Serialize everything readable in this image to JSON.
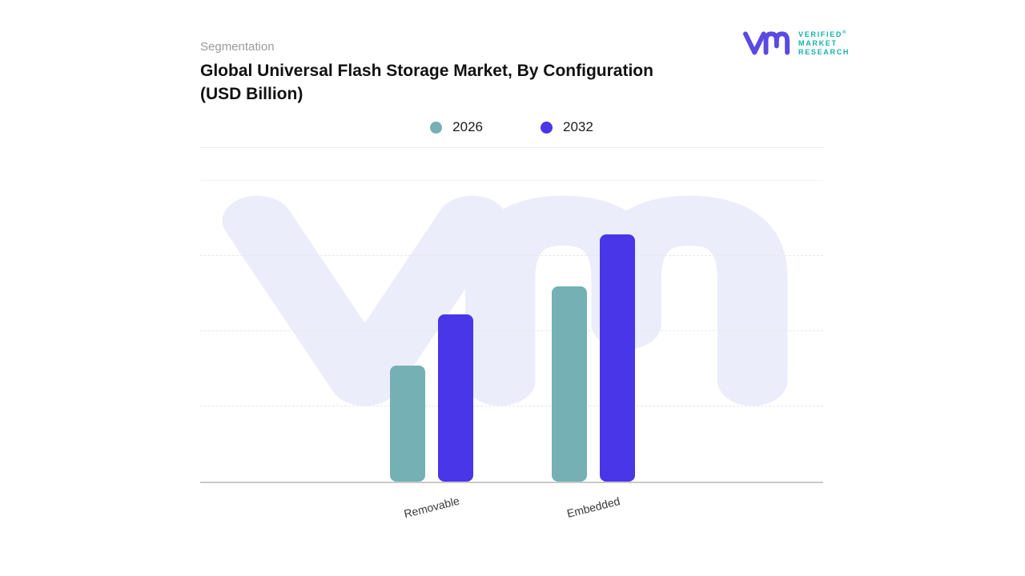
{
  "header": {
    "eyebrow": "Segmentation",
    "title_line1": "Global Universal Flash Storage Market, By Configuration",
    "title_line2": "(USD Billion)"
  },
  "logo": {
    "line1": "VERIFIED",
    "line2": "MARKET",
    "line3": "RESEARCH",
    "registered": "®",
    "mark_color": "#5a4ae2",
    "text_color": "#12b2a8"
  },
  "colors": {
    "series_2026": "#74b0b4",
    "series_2032": "#4936e8",
    "watermark": "#ecedfa",
    "gridline": "#e8e8e8",
    "baseline": "#c9c9c9",
    "title_text": "#111111",
    "eyebrow_text": "#9a9a9a"
  },
  "chart_data": {
    "type": "bar",
    "title": "Global Universal Flash Storage Market, By Configuration (USD Billion)",
    "categories": [
      "Removable",
      "Embedded"
    ],
    "series": [
      {
        "name": "2026",
        "color": "#74b0b4",
        "values": [
          38.5,
          64.9
        ]
      },
      {
        "name": "2032",
        "color": "#4936e8",
        "values": [
          55.7,
          82.1
        ]
      }
    ],
    "xlabel": "",
    "ylabel": "",
    "ylim": [
      0,
      100
    ],
    "gridlines": [
      25,
      50,
      75
    ],
    "grid": "horizontal-dashed",
    "legend_position": "top-center"
  }
}
